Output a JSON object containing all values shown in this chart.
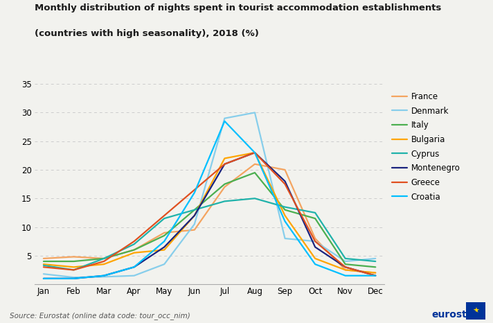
{
  "title_line1": "Monthly distribution of nights spent in tourist accommodation establishments",
  "title_line2": "(countries with high seasonality), 2018 (%)",
  "source": "Source: Eurostat (online data code: tour_occ_nim)",
  "months": [
    "Jan",
    "Feb",
    "Mar",
    "Apr",
    "May",
    "Jun",
    "Jul",
    "Aug",
    "Sep",
    "Oct",
    "Nov",
    "Dec"
  ],
  "series": {
    "France": [
      4.5,
      4.8,
      4.5,
      6.0,
      9.0,
      9.5,
      17.0,
      21.0,
      20.0,
      8.0,
      2.5,
      2.0
    ],
    "Denmark": [
      1.8,
      1.2,
      1.3,
      1.5,
      3.5,
      10.5,
      29.0,
      30.0,
      8.0,
      7.5,
      4.0,
      4.5
    ],
    "Italy": [
      4.0,
      4.0,
      4.5,
      6.0,
      8.5,
      13.0,
      17.5,
      19.5,
      13.0,
      11.5,
      3.5,
      3.0
    ],
    "Bulgaria": [
      3.5,
      3.0,
      3.5,
      5.5,
      6.0,
      12.0,
      22.0,
      23.0,
      12.0,
      4.5,
      2.5,
      2.0
    ],
    "Cyprus": [
      3.3,
      2.5,
      4.5,
      7.0,
      11.5,
      13.0,
      14.5,
      15.0,
      13.5,
      12.5,
      4.5,
      4.0
    ],
    "Montenegro": [
      1.0,
      1.0,
      1.5,
      3.0,
      6.5,
      12.0,
      21.0,
      23.0,
      18.0,
      6.5,
      3.0,
      1.5
    ],
    "Greece": [
      3.0,
      2.5,
      4.0,
      7.5,
      12.0,
      16.5,
      21.0,
      23.0,
      17.5,
      7.5,
      3.0,
      1.5
    ],
    "Croatia": [
      1.0,
      1.0,
      1.5,
      3.0,
      7.5,
      16.0,
      28.5,
      23.0,
      11.0,
      3.5,
      1.5,
      1.5
    ]
  },
  "colors": {
    "France": "#f4a460",
    "Denmark": "#87ceeb",
    "Italy": "#4caf50",
    "Bulgaria": "#ffa500",
    "Cyprus": "#20b2aa",
    "Montenegro": "#1a237e",
    "Greece": "#e05020",
    "Croatia": "#00bfff"
  },
  "ylim": [
    0,
    35
  ],
  "yticks": [
    0,
    5,
    10,
    15,
    20,
    25,
    30,
    35
  ],
  "background_color": "#f2f2ee",
  "grid_color": "#cccccc",
  "linewidth": 1.6
}
